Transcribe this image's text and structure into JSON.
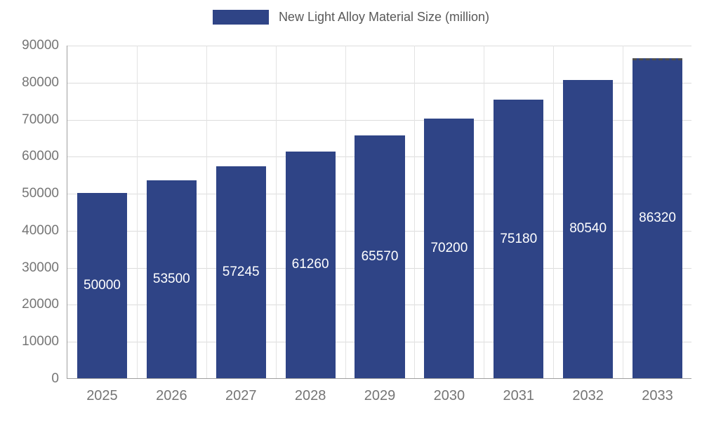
{
  "legend": {
    "label": "New Light Alloy Material Size (million)",
    "swatch_color": "#2F4486"
  },
  "chart_data": {
    "type": "bar",
    "title": "New Light Alloy Material Size (million)",
    "categories": [
      "2025",
      "2026",
      "2027",
      "2028",
      "2029",
      "2030",
      "2031",
      "2032",
      "2033"
    ],
    "values": [
      50000,
      53500,
      57245,
      61260,
      65570,
      70200,
      75180,
      80540,
      86320
    ],
    "xlabel": "",
    "ylabel": "",
    "ylim": [
      0,
      90000
    ],
    "ytick_step": 10000,
    "grid": true,
    "legend_position": "top-center",
    "value_labels": "inside-white-centered",
    "bar_color": "#2F4486",
    "last_bar_style": "dashed-top-forecast"
  }
}
